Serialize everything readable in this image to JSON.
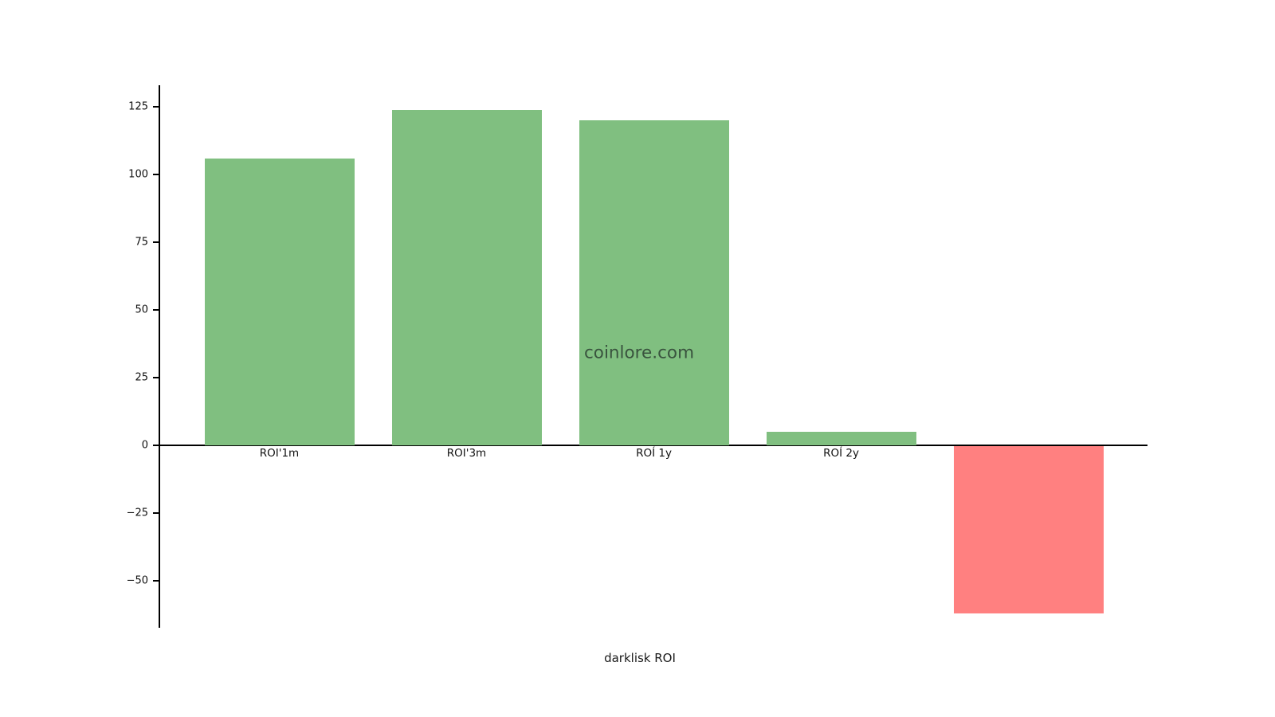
{
  "page": {
    "background_color": "#ffffff"
  },
  "watermark": {
    "text": "coinlore.com",
    "color": "rgba(42,58,47,0.82)"
  },
  "chart_data": {
    "type": "bar",
    "title": "darklisk ROI",
    "categories": [
      "ROI'1m",
      "ROI'3m",
      "ROÍ 1y",
      "ROÍ 2y",
      ""
    ],
    "values": [
      106,
      124,
      120,
      5,
      -62
    ],
    "positive_color": "#80BF80",
    "negative_color": "#FF8080",
    "yticks": [
      125,
      100,
      75,
      50,
      25,
      0,
      -25,
      -50
    ],
    "ylim": [
      -67.5,
      133
    ],
    "xlabel": "",
    "ylabel": "",
    "grid": false,
    "legend": null,
    "axis_color": "#000000"
  }
}
